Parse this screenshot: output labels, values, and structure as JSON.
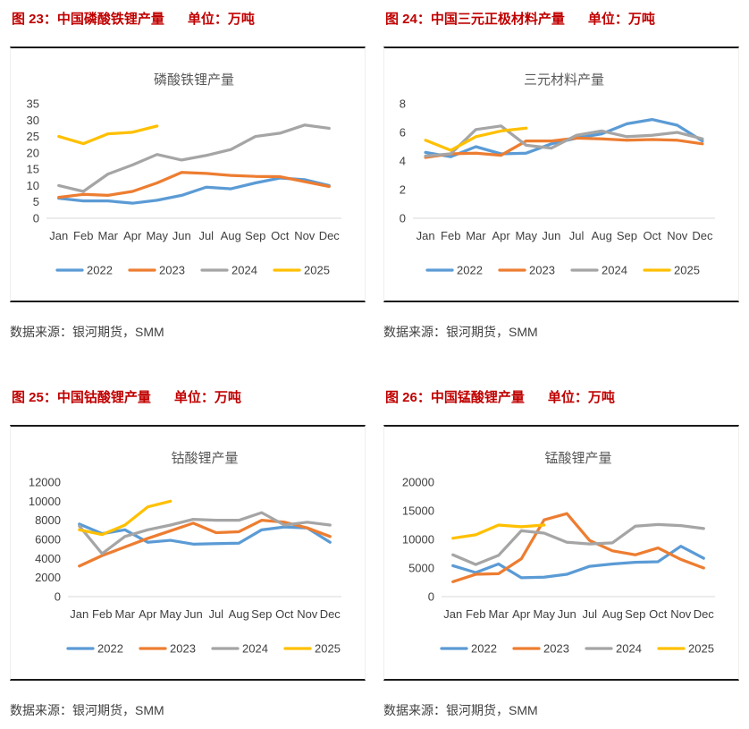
{
  "source_label": "数据来源：银河期货，SMM",
  "colors": {
    "figure_caption": "#C00000",
    "chart_title": "#595959",
    "axis_text": "#404040",
    "axis_line": "#D9D9D9",
    "panel_border": "#1a1a1a",
    "series": {
      "2022": "#5B9BD5",
      "2023": "#ED7D31",
      "2024": "#A5A5A5",
      "2025": "#FFC000"
    }
  },
  "figures": [
    {
      "caption": "图 23：中国磷酸铁锂产量",
      "unit": "单位：万吨"
    },
    {
      "caption": "图 24：中国三元正极材料产量",
      "unit": "单位：万吨"
    },
    {
      "caption": "图 25：中国钴酸锂产量",
      "unit": "单位：万吨"
    },
    {
      "caption": "图 26：中国锰酸锂产量",
      "unit": "单位：万吨"
    }
  ],
  "chart_data": [
    {
      "type": "line",
      "title": "磷酸铁锂产量",
      "categories": [
        "Jan",
        "Feb",
        "Mar",
        "Apr",
        "May",
        "Jun",
        "Jul",
        "Aug",
        "Sep",
        "Oct",
        "Nov",
        "Dec"
      ],
      "ylim": [
        0,
        35
      ],
      "yticks": [
        0,
        5,
        10,
        15,
        20,
        25,
        30,
        35
      ],
      "grid": false,
      "legend_position": "bottom",
      "legend": [
        "2022",
        "2023",
        "2024",
        "2025"
      ],
      "series": [
        {
          "name": "2022",
          "color": "#5B9BD5",
          "values": [
            6.1,
            5.3,
            5.3,
            4.6,
            5.5,
            7.0,
            9.5,
            9.0,
            10.8,
            12.3,
            11.8,
            10.0
          ]
        },
        {
          "name": "2023",
          "color": "#ED7D31",
          "values": [
            6.4,
            7.3,
            7.0,
            8.2,
            10.8,
            14.0,
            13.7,
            13.1,
            12.8,
            12.7,
            11.2,
            9.7
          ]
        },
        {
          "name": "2024",
          "color": "#A5A5A5",
          "values": [
            10.0,
            8.2,
            13.5,
            16.3,
            19.5,
            17.8,
            19.2,
            21.0,
            25.0,
            26.0,
            28.5,
            27.5
          ]
        },
        {
          "name": "2025",
          "color": "#FFC000",
          "values": [
            25.0,
            22.8,
            25.8,
            26.3,
            28.2
          ]
        }
      ]
    },
    {
      "type": "line",
      "title": "三元材料产量",
      "categories": [
        "Jan",
        "Feb",
        "Mar",
        "Apr",
        "May",
        "Jun",
        "Jul",
        "Aug",
        "Sep",
        "Oct",
        "Nov",
        "Dec"
      ],
      "ylim": [
        0,
        8
      ],
      "yticks": [
        0,
        2,
        4,
        6,
        8
      ],
      "grid": false,
      "legend_position": "bottom",
      "legend": [
        "2022",
        "2023",
        "2024",
        "2025"
      ],
      "series": [
        {
          "name": "2022",
          "color": "#5B9BD5",
          "values": [
            4.6,
            4.3,
            5.0,
            4.5,
            4.55,
            5.2,
            5.6,
            5.9,
            6.6,
            6.9,
            6.5,
            5.4
          ]
        },
        {
          "name": "2023",
          "color": "#ED7D31",
          "values": [
            4.25,
            4.5,
            4.55,
            4.4,
            5.4,
            5.4,
            5.6,
            5.55,
            5.45,
            5.5,
            5.45,
            5.2
          ]
        },
        {
          "name": "2024",
          "color": "#A5A5A5",
          "values": [
            4.35,
            4.5,
            6.2,
            6.45,
            5.1,
            4.9,
            5.8,
            6.1,
            5.7,
            5.8,
            6.0,
            5.55
          ]
        },
        {
          "name": "2025",
          "color": "#FFC000",
          "values": [
            5.45,
            4.75,
            5.7,
            6.1,
            6.3
          ]
        }
      ]
    },
    {
      "type": "line",
      "title": "钴酸锂产量",
      "categories": [
        "Jan",
        "Feb",
        "Mar",
        "Apr",
        "May",
        "Jun",
        "Jul",
        "Aug",
        "Sep",
        "Oct",
        "Nov",
        "Dec"
      ],
      "ylim": [
        0,
        12000
      ],
      "yticks": [
        0,
        2000,
        4000,
        6000,
        8000,
        10000,
        12000
      ],
      "grid": false,
      "legend_position": "bottom",
      "legend": [
        "2022",
        "2023",
        "2024",
        "2025"
      ],
      "series": [
        {
          "name": "2022",
          "color": "#5B9BD5",
          "values": [
            7600,
            6600,
            7000,
            5700,
            5900,
            5500,
            5550,
            5600,
            7000,
            7300,
            7200,
            5700
          ]
        },
        {
          "name": "2023",
          "color": "#ED7D31",
          "values": [
            3200,
            4300,
            5200,
            6100,
            6900,
            7700,
            6700,
            6800,
            8000,
            7800,
            7200,
            6300
          ]
        },
        {
          "name": "2024",
          "color": "#A5A5A5",
          "values": [
            7400,
            4500,
            6300,
            7000,
            7500,
            8100,
            8000,
            8000,
            8800,
            7500,
            7800,
            7500
          ]
        },
        {
          "name": "2025",
          "color": "#FFC000",
          "values": [
            7000,
            6500,
            7500,
            9400,
            10000
          ]
        }
      ]
    },
    {
      "type": "line",
      "title": "锰酸锂产量",
      "categories": [
        "Jan",
        "Feb",
        "Mar",
        "Apr",
        "May",
        "Jun",
        "Jul",
        "Aug",
        "Sep",
        "Oct",
        "Nov",
        "Dec"
      ],
      "ylim": [
        0,
        20000
      ],
      "yticks": [
        0,
        5000,
        10000,
        15000,
        20000
      ],
      "grid": false,
      "legend_position": "bottom",
      "legend": [
        "2022",
        "2023",
        "2024",
        "2025"
      ],
      "series": [
        {
          "name": "2022",
          "color": "#5B9BD5",
          "values": [
            5400,
            4200,
            5700,
            3300,
            3400,
            3900,
            5300,
            5700,
            6000,
            6100,
            8800,
            6700
          ]
        },
        {
          "name": "2023",
          "color": "#ED7D31",
          "values": [
            2600,
            3900,
            4000,
            6600,
            13400,
            14500,
            9800,
            8000,
            7300,
            8500,
            6500,
            5000
          ]
        },
        {
          "name": "2024",
          "color": "#A5A5A5",
          "values": [
            7300,
            5600,
            7200,
            11500,
            11100,
            9500,
            9200,
            9400,
            12300,
            12600,
            12400,
            11900
          ]
        },
        {
          "name": "2025",
          "color": "#FFC000",
          "values": [
            10200,
            10800,
            12500,
            12200,
            12500
          ]
        }
      ]
    }
  ]
}
